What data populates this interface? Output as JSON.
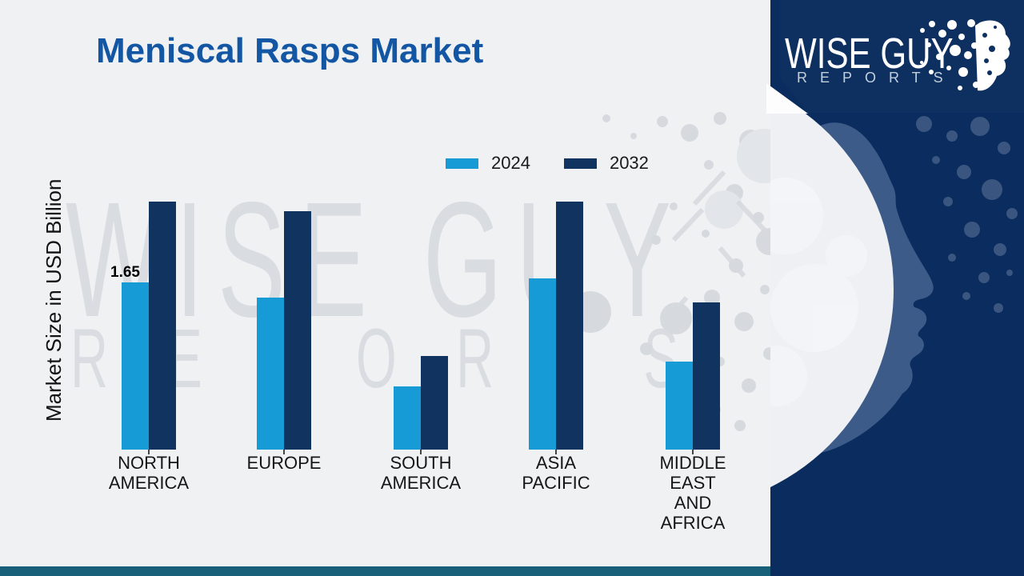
{
  "title": "Meniscal Rasps Market",
  "y_axis_label": "Market Size in USD Billion",
  "watermark": {
    "line1": "WISE GUY",
    "line2": "REPORTS"
  },
  "logo": {
    "brand_line1": "WISE GUY",
    "brand_line2": "REPORTS"
  },
  "colors": {
    "background": "#eff1f3",
    "title_blue": "#1356a4",
    "series_2024": "#169bd7",
    "series_2032": "#11335f",
    "navy_panel": "#0a2c5e",
    "teal_bar": "#186079",
    "face_slate": "#3d5b89"
  },
  "chart_data": {
    "type": "bar",
    "categories": [
      "NORTH AMERICA",
      "EUROPE",
      "SOUTH AMERICA",
      "ASIA PACIFIC",
      "MIDDLE EAST AND AFRICA"
    ],
    "series": [
      {
        "name": "2024",
        "color": "#169bd7",
        "values": [
          1.65,
          1.5,
          0.62,
          1.69,
          0.87
        ]
      },
      {
        "name": "2032",
        "color": "#11335f",
        "values": [
          2.45,
          2.35,
          0.92,
          2.45,
          1.45
        ]
      }
    ],
    "title": "Meniscal Rasps Market",
    "xlabel": "",
    "ylabel": "Market Size in USD Billion",
    "ylim": [
      0,
      2.6
    ],
    "grid": false,
    "legend_position": "top-center",
    "data_labels": [
      {
        "series": "2024",
        "category": "NORTH AMERICA",
        "text": "1.65"
      }
    ]
  }
}
